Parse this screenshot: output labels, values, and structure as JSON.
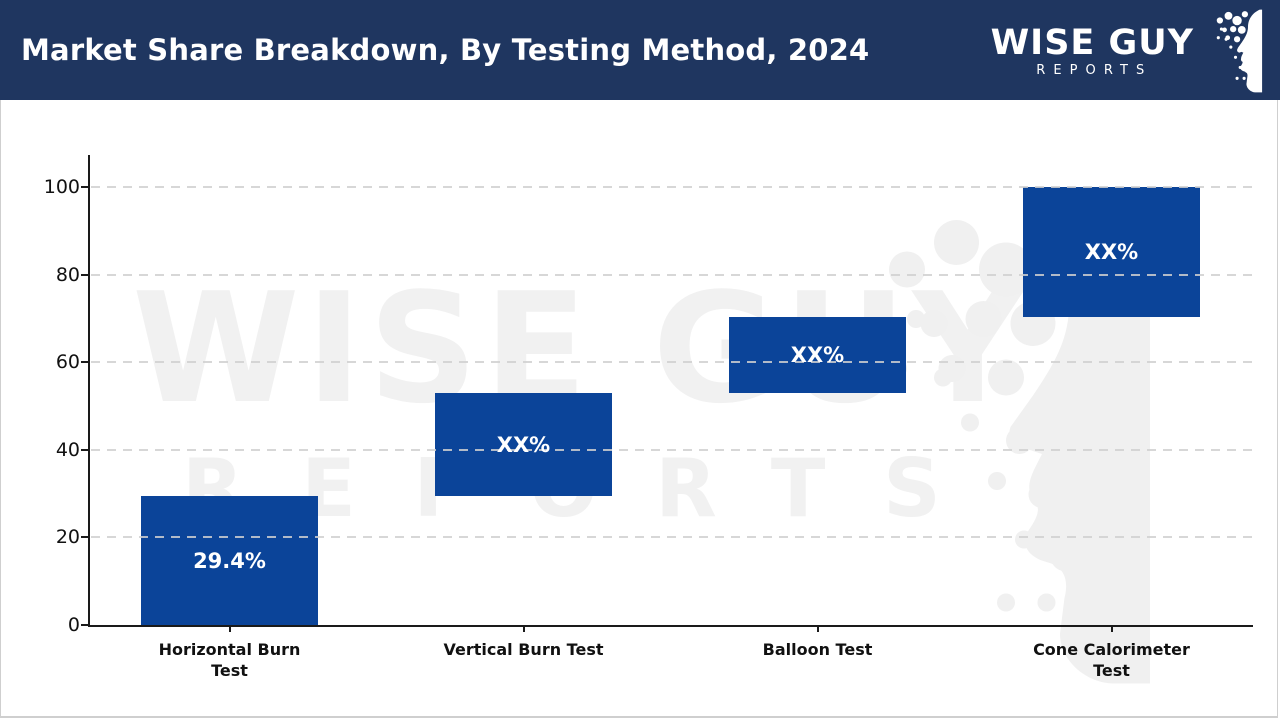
{
  "header": {
    "title": "Market Share Breakdown, By Testing Method, 2024",
    "logo": {
      "line1": "WISE GUY",
      "line2": "REPORTS"
    }
  },
  "watermark": {
    "line1": "WISE GUY",
    "line2": "REPORTS"
  },
  "colors": {
    "header_bg": "#1f3660",
    "bar": "#0b4499",
    "bar_label": "#ffffff",
    "gridline": "#d0d0d0",
    "axis": "#1a1a1a",
    "watermark": "#f1f1f1"
  },
  "chart_data": {
    "type": "bar",
    "subtype": "waterfall",
    "title": "Market Share Breakdown, By Testing Method, 2024",
    "xlabel": "",
    "ylabel": "",
    "ylim": [
      0,
      105
    ],
    "grid": true,
    "legend": false,
    "y_ticks": [
      0,
      20,
      40,
      60,
      80,
      100
    ],
    "categories": [
      "Horizontal Burn Test",
      "Vertical Burn Test",
      "Balloon Test",
      "Cone Calorimeter Test"
    ],
    "bars": [
      {
        "category": "Horizontal Burn Test",
        "name_lines": [
          "Horizontal Burn",
          "Test"
        ],
        "start": 0,
        "end": 29.4,
        "value": 29.4,
        "label": "29.4%"
      },
      {
        "category": "Vertical Burn Test",
        "name_lines": [
          "Vertical Burn Test"
        ],
        "start": 29.4,
        "end": 53.0,
        "value": 23.6,
        "label": "XX%"
      },
      {
        "category": "Balloon Test",
        "name_lines": [
          "Balloon Test"
        ],
        "start": 53.0,
        "end": 70.4,
        "value": 17.4,
        "label": "XX%"
      },
      {
        "category": "Cone Calorimeter Test",
        "name_lines": [
          "Cone Calorimeter",
          "Test"
        ],
        "start": 70.4,
        "end": 100.0,
        "value": 29.6,
        "label": "XX%"
      }
    ]
  }
}
